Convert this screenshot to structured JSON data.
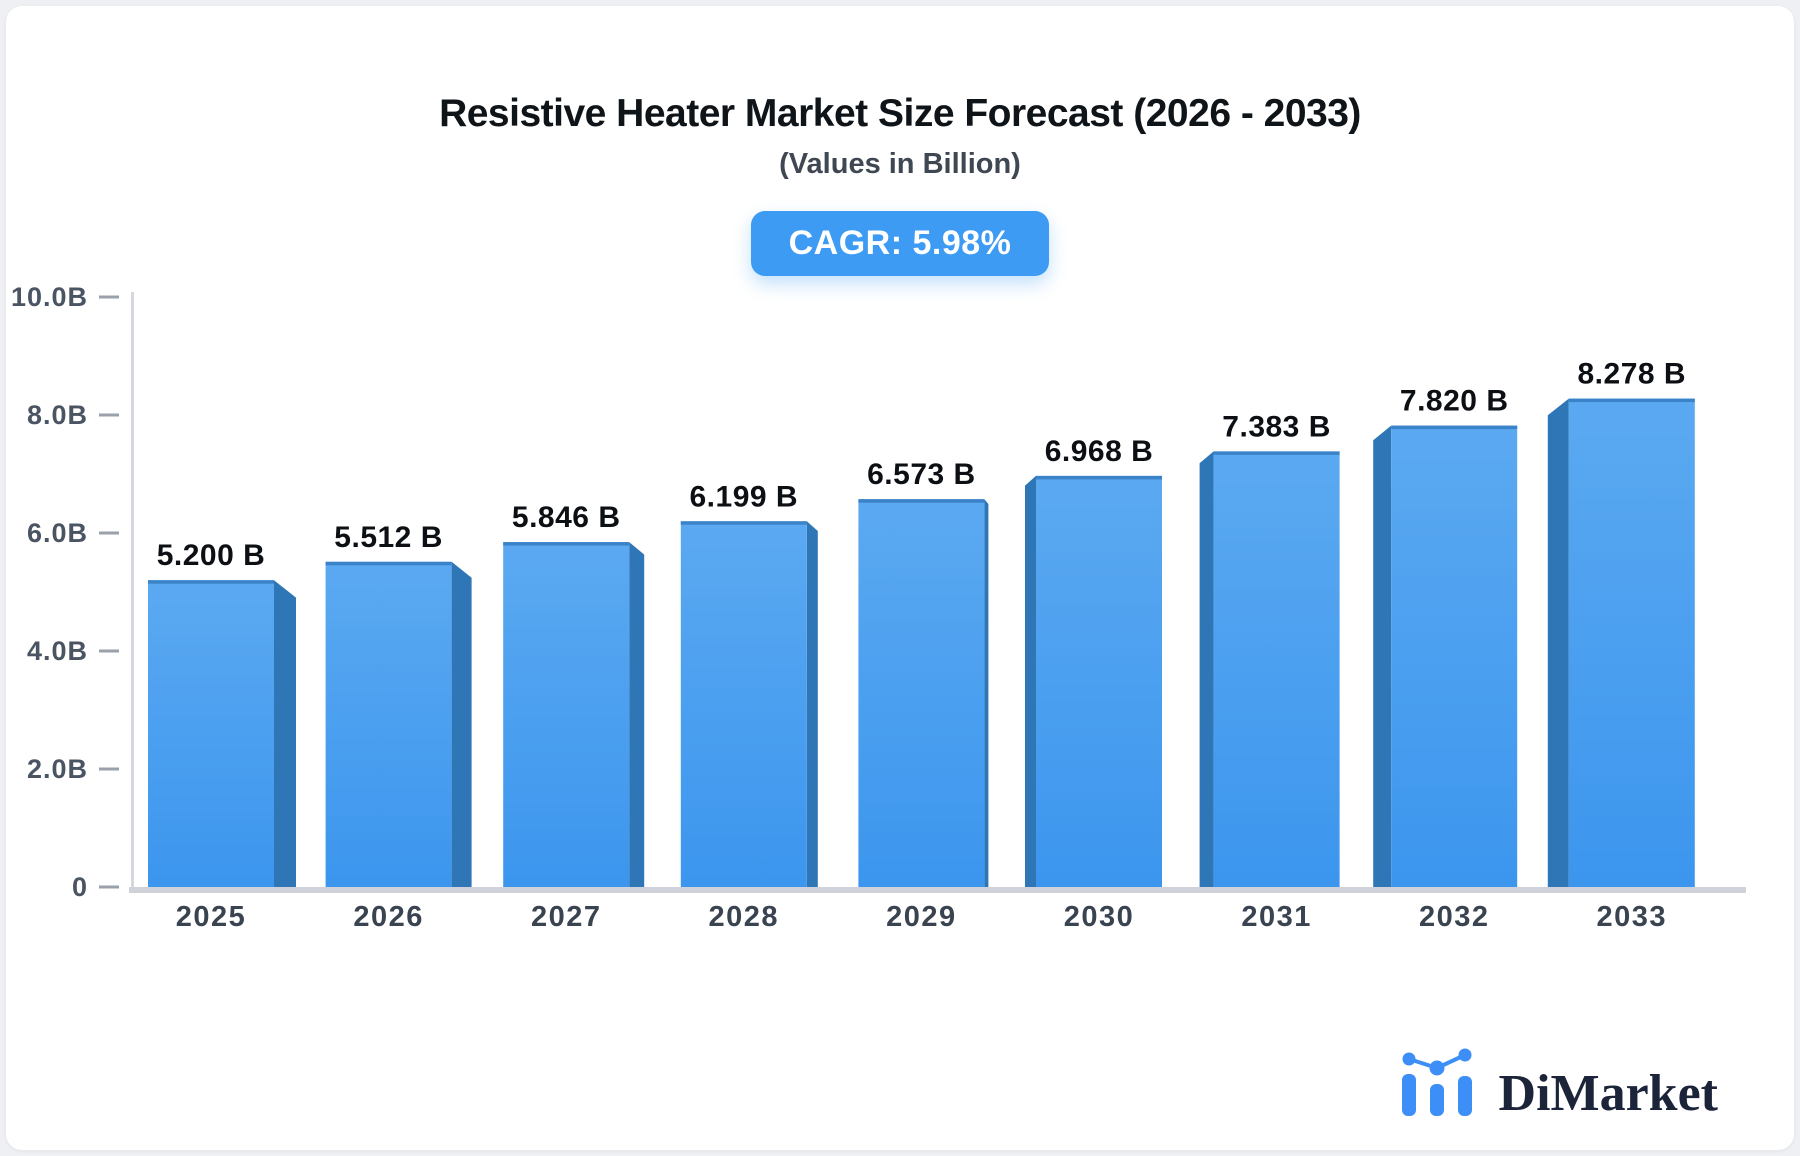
{
  "title": "Resistive Heater Market Size Forecast (2026 - 2033)",
  "subtitle": "(Values in Billion)",
  "badge": {
    "label": "CAGR: 5.98%"
  },
  "brand": {
    "name": "DiMarket",
    "icon": "mini-bar-chart-with-trend-dots"
  },
  "colors": {
    "badge_bg": "#3d9bf3",
    "bar_top": "#5ba9f1",
    "bar_bottom": "#3c96ee",
    "bar_side": "#2e76b5",
    "bar_top_edge": "#3b83c9",
    "axis_line": "#d5d8dd",
    "baseline": "#cfd3d9",
    "tick_dash": "#9aa1ab",
    "y_label": "#4a5462",
    "x_label": "#3a4350",
    "value_label": "#0c0f13",
    "logo_blue": "#3e8ef7",
    "logo_navy": "#1b2438"
  },
  "chart_data": {
    "type": "bar",
    "title": "Resistive Heater Market Size Forecast (2026 - 2033)",
    "subtitle": "(Values in Billion)",
    "annotation": "CAGR: 5.98%",
    "categories": [
      "2025",
      "2026",
      "2027",
      "2028",
      "2029",
      "2030",
      "2031",
      "2032",
      "2033"
    ],
    "values": [
      5.2,
      5.512,
      5.846,
      6.199,
      6.573,
      6.968,
      7.383,
      7.82,
      8.278
    ],
    "value_labels": [
      "5.200 B",
      "5.512 B",
      "5.846 B",
      "6.199 B",
      "6.573 B",
      "6.968 B",
      "7.383 B",
      "7.820 B",
      "8.278 B"
    ],
    "xlabel": "",
    "ylabel": "",
    "ylim": [
      0,
      10
    ],
    "y_ticks": [
      {
        "value": 0,
        "label": "0"
      },
      {
        "value": 2,
        "label": "2.0B"
      },
      {
        "value": 4,
        "label": "4.0B"
      },
      {
        "value": 6,
        "label": "6.0B"
      },
      {
        "value": 8,
        "label": "8.0B"
      },
      {
        "value": 10,
        "label": "10.0B"
      }
    ],
    "grid": false,
    "legend": null,
    "style": "3d-perspective-bars"
  }
}
